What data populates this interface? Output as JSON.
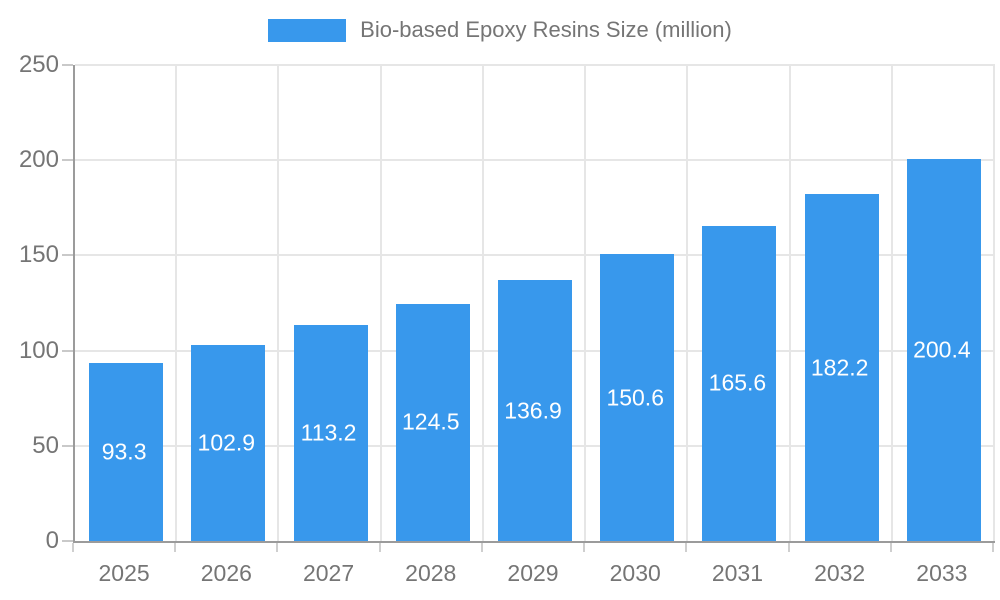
{
  "legend": {
    "label": "Bio-based Epoxy Resins Size (million)"
  },
  "chart_data": {
    "type": "bar",
    "title": "Bio-based Epoxy Resins Size (million)",
    "categories": [
      "2025",
      "2026",
      "2027",
      "2028",
      "2029",
      "2030",
      "2031",
      "2032",
      "2033"
    ],
    "values": [
      93.3,
      102.9,
      113.2,
      124.5,
      136.9,
      150.6,
      165.6,
      182.2,
      200.4
    ],
    "xlabel": "",
    "ylabel": "",
    "ylim": [
      0,
      250
    ],
    "yticks": [
      0,
      50,
      100,
      150,
      200,
      250
    ],
    "grid": true,
    "legend_position": "top",
    "value_labels": "inside-center",
    "colors": {
      "bar": "#3898ec",
      "axis_text": "#757575",
      "value_text": "#ffffff",
      "gridline": "#e6e6e6",
      "axis_line": "#9b9b9b",
      "tick": "#c9c9c9",
      "background": "#ffffff"
    }
  }
}
